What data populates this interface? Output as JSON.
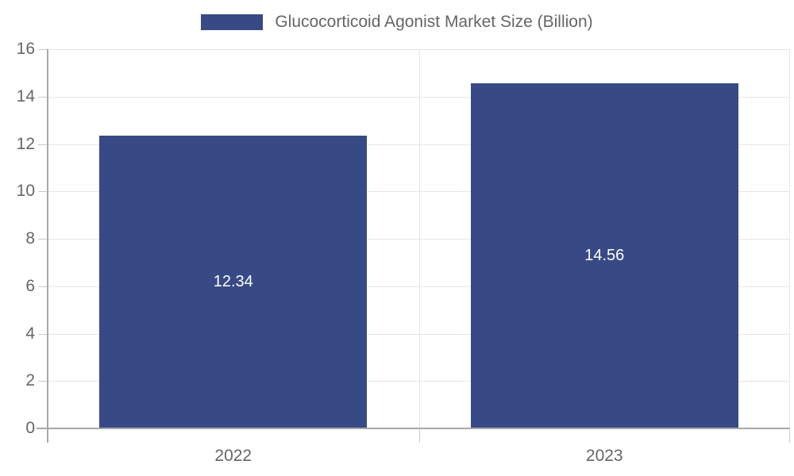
{
  "chart_data": {
    "type": "bar",
    "title": "",
    "series_name": "Glucocorticoid Agonist Market Size (Billion)",
    "categories": [
      "2022",
      "2023"
    ],
    "values": [
      12.34,
      14.56
    ],
    "value_labels": [
      "12.34",
      "14.56"
    ],
    "xlabel": "",
    "ylabel": "",
    "ylim": [
      0,
      16
    ],
    "yticks": [
      0,
      2,
      4,
      6,
      8,
      10,
      12,
      14,
      16
    ],
    "ytick_labels": [
      "0",
      "2",
      "4",
      "6",
      "8",
      "10",
      "12",
      "14",
      "16"
    ],
    "grid": true,
    "legend_position": "top-center",
    "colors": {
      "bar": "#384A85",
      "grid": "#e6e6e6",
      "axis": "#a8a8a8",
      "tick": "#c9c9c9",
      "tick_text": "#666666",
      "legend_text": "#666666",
      "value_text": "#ffffff"
    }
  }
}
